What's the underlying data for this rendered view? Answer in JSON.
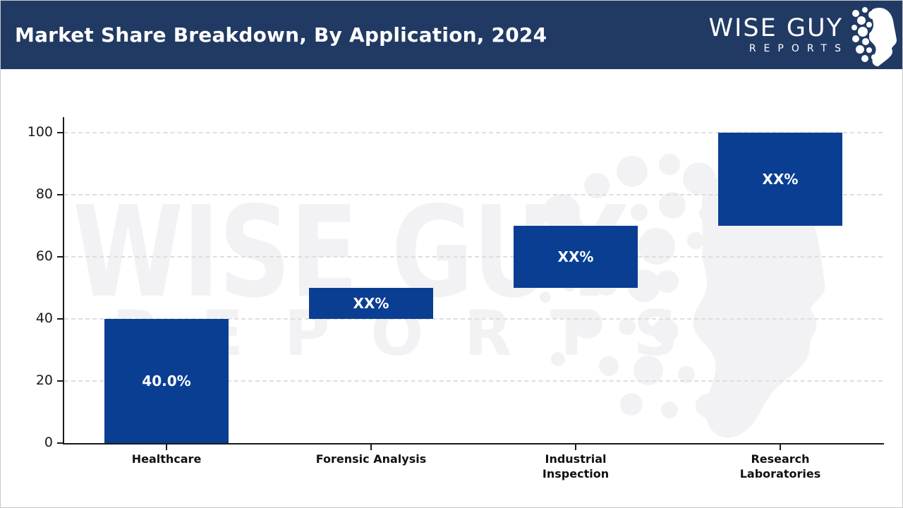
{
  "header": {
    "title": "Market Share Breakdown, By Application, 2024",
    "bg_color": "#213a64",
    "logo": {
      "line1": "WISE GUY",
      "line2": "REPORTS"
    }
  },
  "watermark": {
    "line1": "WISE GUY",
    "line2": "REPORTS"
  },
  "chart_data": {
    "type": "bar",
    "variant": "waterfall",
    "title": "Market Share Breakdown, By Application, 2024",
    "categories": [
      "Healthcare",
      "Forensic Analysis",
      "Industrial Inspection",
      "Research Laboratories"
    ],
    "segments": [
      {
        "category": "Healthcare",
        "category_lines": [
          "Healthcare"
        ],
        "start": 0,
        "end": 40,
        "label": "40.0%"
      },
      {
        "category": "Forensic Analysis",
        "category_lines": [
          "Forensic Analysis"
        ],
        "start": 40,
        "end": 50,
        "label": "XX%"
      },
      {
        "category": "Industrial Inspection",
        "category_lines": [
          "Industrial",
          "Inspection"
        ],
        "start": 50,
        "end": 70,
        "label": "XX%"
      },
      {
        "category": "Research Laboratories",
        "category_lines": [
          "Research",
          "Laboratories"
        ],
        "start": 70,
        "end": 100,
        "label": "XX%"
      }
    ],
    "ylim": [
      0,
      100
    ],
    "yticks": [
      0,
      20,
      40,
      60,
      80,
      100
    ],
    "xlabel": "",
    "ylabel": "",
    "bar_color": "#0a3e92",
    "grid": "horizontal-dashed",
    "grid_color": "#dedede",
    "legend": "none",
    "value_label_color": "#ffffff"
  }
}
